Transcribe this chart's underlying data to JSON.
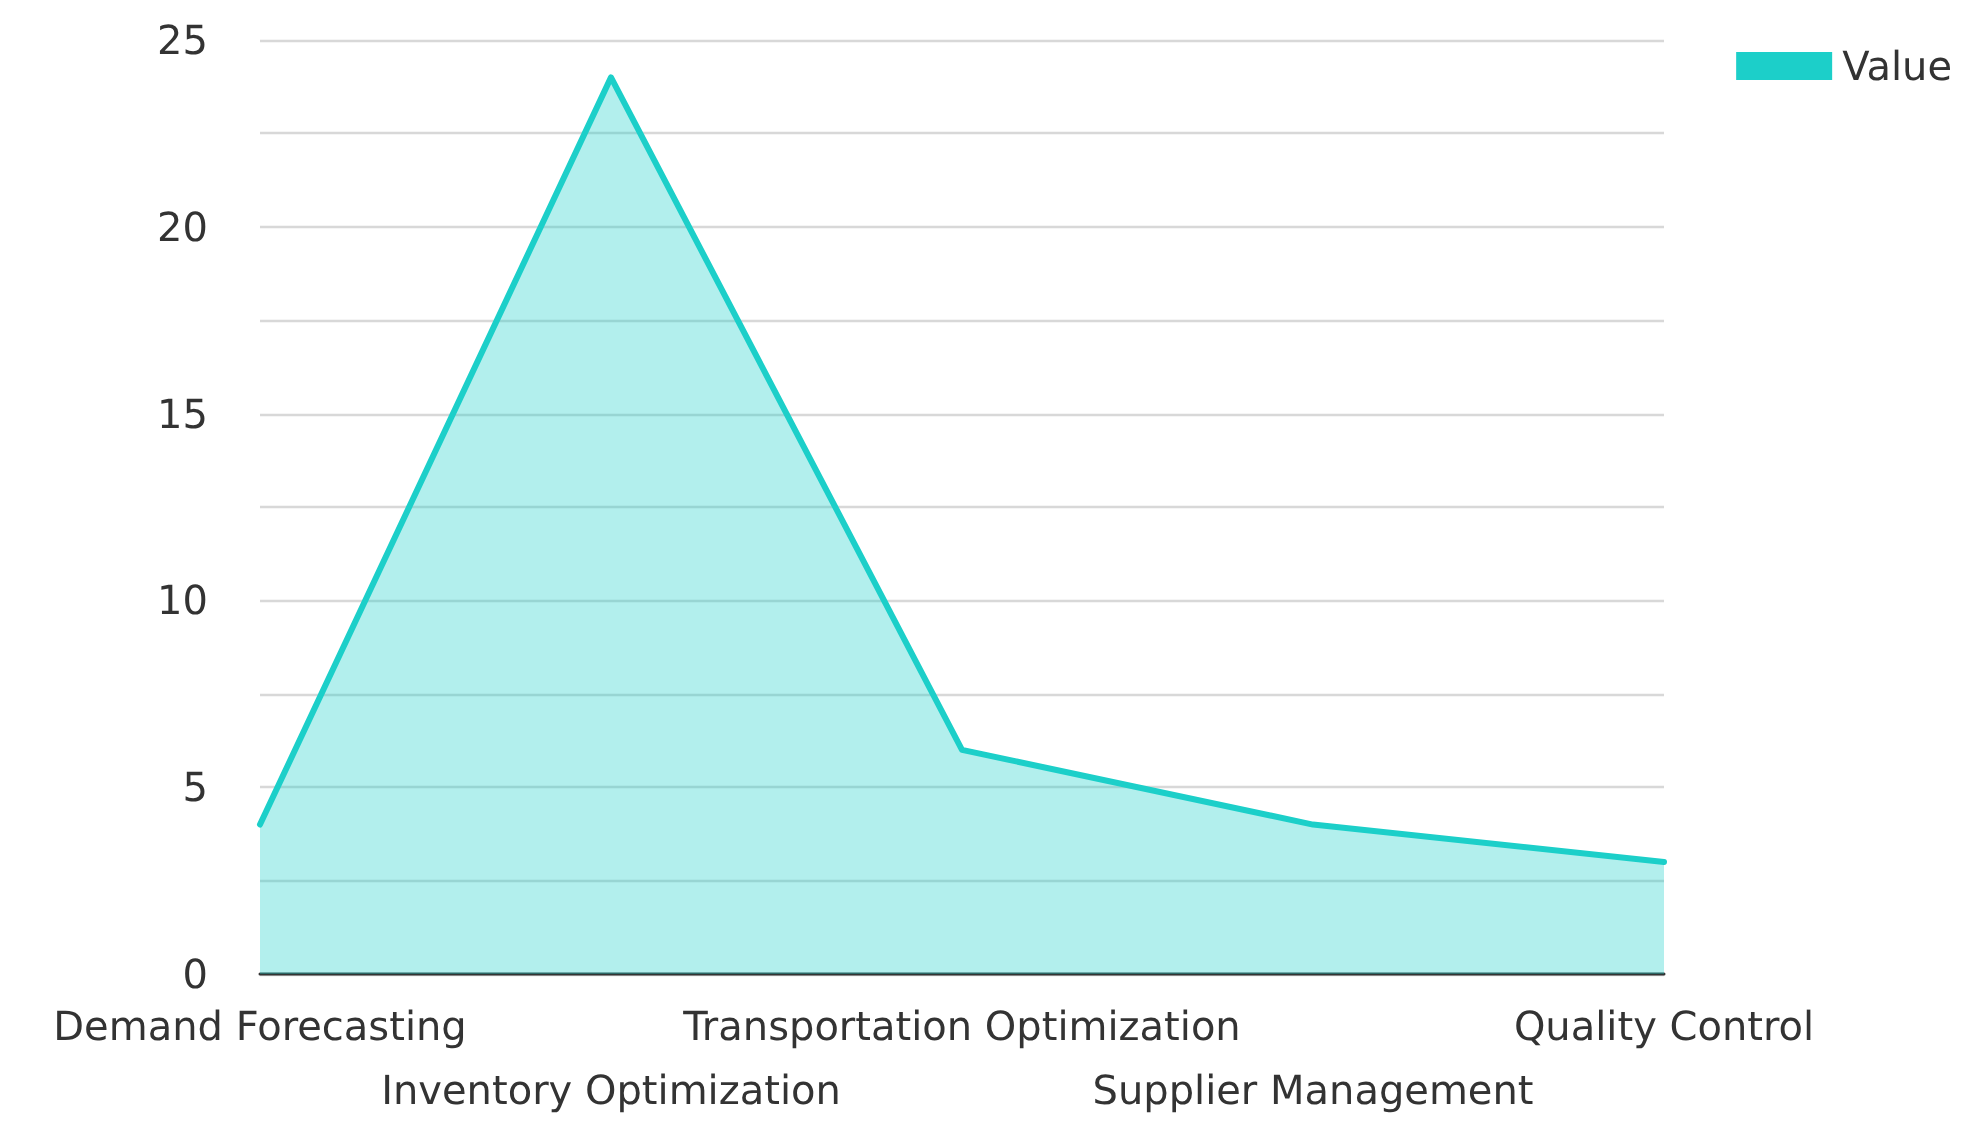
{
  "chart_data": {
    "type": "area",
    "categories": [
      "Demand Forecasting",
      "Inventory Optimization",
      "Transportation Optimization",
      "Supplier Management",
      "Quality Control"
    ],
    "series": [
      {
        "name": "Value",
        "color": "#1ccfc9",
        "values": [
          4,
          24,
          6,
          4,
          3
        ]
      }
    ],
    "ylim": [
      0,
      25
    ],
    "yticks": [
      0,
      {
        "value": 2.5,
        "label": null
      },
      5,
      {
        "value": 7.5,
        "label": null
      },
      10,
      {
        "value": 12.5,
        "label": null
      },
      15,
      {
        "value": 17.5,
        "label": null
      },
      20,
      {
        "value": 22.5,
        "label": null
      },
      25
    ],
    "grid": "y",
    "legend": "top right",
    "marker": "none",
    "line_style": "solid"
  }
}
